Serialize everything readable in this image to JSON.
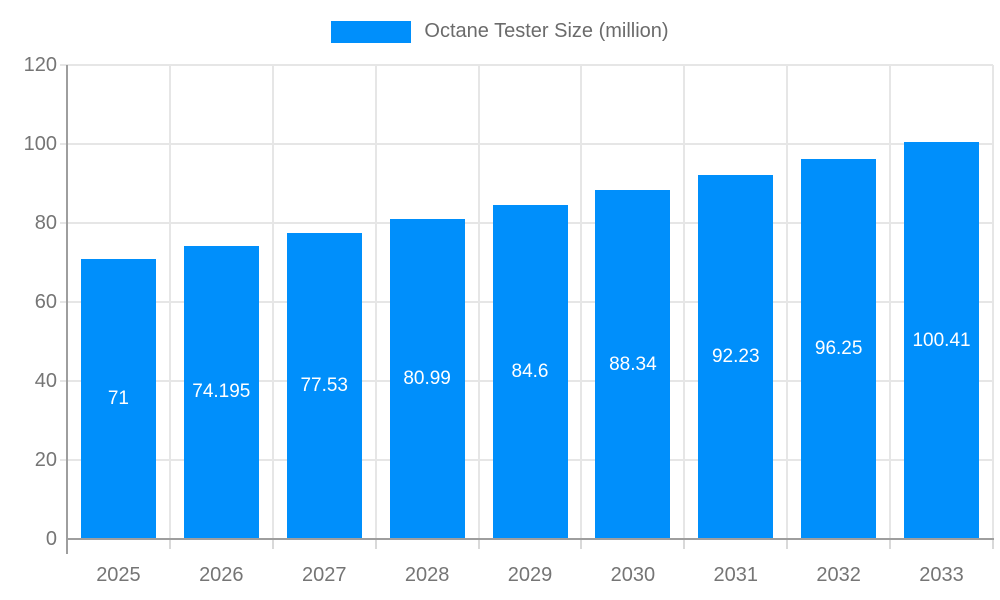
{
  "legend": {
    "label": "Octane Tester Size (million)"
  },
  "colors": {
    "bar": "#008FFB",
    "axis_line": "#9e9e9e",
    "gridline": "#e6e6e6",
    "axis_text": "#757575",
    "bar_label_text": "#ffffff"
  },
  "chart_data": {
    "type": "bar",
    "title": "Octane Tester Size (million)",
    "categories": [
      "2025",
      "2026",
      "2027",
      "2028",
      "2029",
      "2030",
      "2031",
      "2032",
      "2033"
    ],
    "values": [
      71,
      74.195,
      77.53,
      80.99,
      84.6,
      88.34,
      92.23,
      96.25,
      100.41
    ],
    "value_labels": [
      "71",
      "74.195",
      "77.53",
      "80.99",
      "84.6",
      "88.34",
      "92.23",
      "96.25",
      "100.41"
    ],
    "series_name": "Octane Tester Size (million)",
    "xlabel": "",
    "ylabel": "",
    "ylim": [
      0,
      120
    ],
    "yticks": [
      0,
      20,
      40,
      60,
      80,
      100,
      120
    ],
    "grid": true,
    "legend_position": "top",
    "data_labels": "inside-center"
  }
}
